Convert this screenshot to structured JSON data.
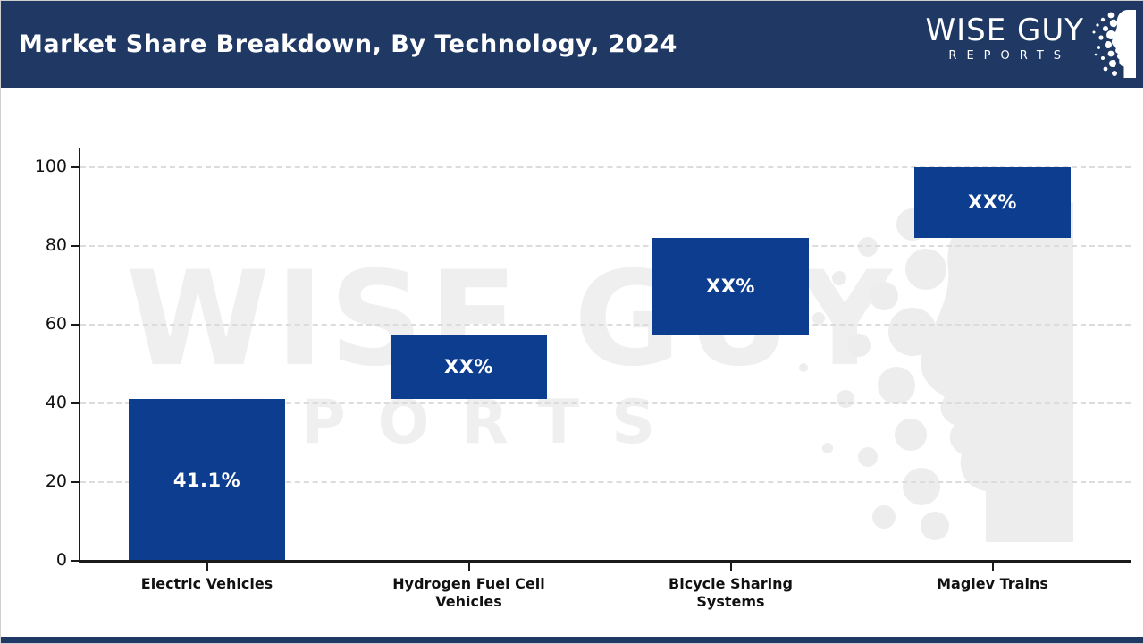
{
  "header": {
    "title": "Market Share Breakdown, By Technology, 2024",
    "logo": {
      "line1": "WISE GUY",
      "line2": "REPORTS"
    }
  },
  "watermark": {
    "line1": "WISE GUY",
    "line2": "REPORTS"
  },
  "colors": {
    "header_bg": "#1f3864",
    "bar": "#0d3d8f",
    "gridline": "#dcdcdc",
    "axis": "#1a1a1a",
    "bar_label": "#ffffff",
    "watermark": "#efefef"
  },
  "chart_data": {
    "type": "bar",
    "subtype": "waterfall",
    "title": "Market Share Breakdown, By Technology, 2024",
    "categories": [
      "Electric Vehicles",
      "Hydrogen Fuel Cell Vehicles",
      "Bicycle Sharing Systems",
      "Maglev Trains"
    ],
    "segments": [
      {
        "start": 0,
        "end": 41.1,
        "label": "41.1%"
      },
      {
        "start": 41.1,
        "end": 57.5,
        "label": "XX%"
      },
      {
        "start": 57.5,
        "end": 82.1,
        "label": "XX%"
      },
      {
        "start": 82.1,
        "end": 100,
        "label": "XX%"
      }
    ],
    "xlabel": "",
    "ylabel": "",
    "ylim": [
      0,
      100
    ],
    "yticks": [
      0,
      20,
      40,
      60,
      80,
      100
    ],
    "grid": "horizontal dashed",
    "legend": "none"
  }
}
